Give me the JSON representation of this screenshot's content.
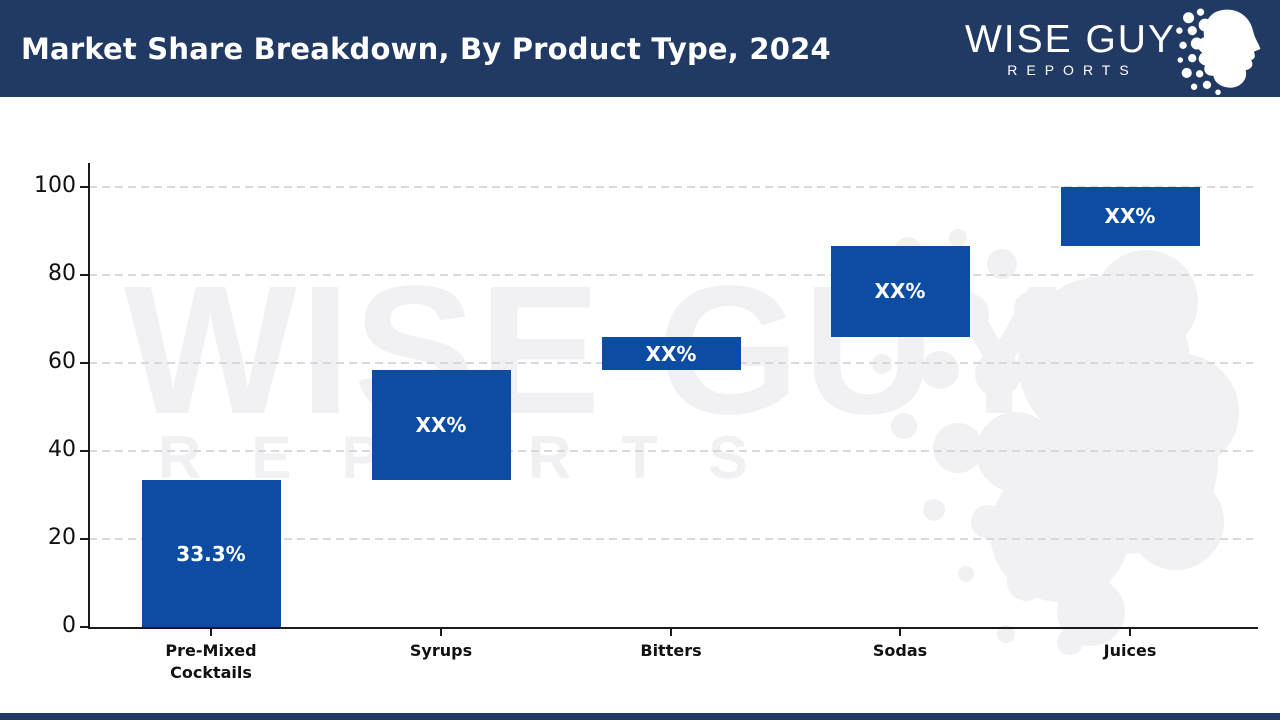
{
  "header": {
    "title": "Market Share Breakdown, By Product Type, 2024"
  },
  "logo": {
    "name_line": "WISE GUY",
    "sub_line": "REPORTS"
  },
  "watermark": {
    "name_line": "WISE GUY",
    "sub_line": "REPORTS"
  },
  "colors": {
    "header_bg": "#213a64",
    "bar_fill": "#0d4ca3",
    "bar_label_text": "#ffffff",
    "gridline": "#d9d9d9",
    "axis": "#1a1a1a",
    "watermark": "#f1f1f3"
  },
  "chart_data": {
    "type": "bar",
    "subtype": "waterfall",
    "title": "Market Share Breakdown, By Product Type, 2024",
    "categories": [
      "Pre-Mixed Cocktails",
      "Syrups",
      "Bitters",
      "Sodas",
      "Juices"
    ],
    "category_lines": [
      [
        "Pre-Mixed",
        "Cocktails"
      ],
      [
        "Syrups"
      ],
      [
        "Bitters"
      ],
      [
        "Sodas"
      ],
      [
        "Juices"
      ]
    ],
    "bars": [
      {
        "category": "Pre-Mixed Cocktails",
        "start": 0,
        "end": 33.3,
        "label": "33.3%"
      },
      {
        "category": "Syrups",
        "start": 33.3,
        "end": 58.3,
        "label": "XX%"
      },
      {
        "category": "Bitters",
        "start": 58.3,
        "end": 66,
        "label": "XX%"
      },
      {
        "category": "Sodas",
        "start": 66,
        "end": 86.6,
        "label": "XX%"
      },
      {
        "category": "Juices",
        "start": 86.6,
        "end": 100,
        "label": "XX%"
      }
    ],
    "yticks": [
      0,
      20,
      40,
      60,
      80,
      100
    ],
    "ylim": [
      0,
      105
    ],
    "xlabel": "",
    "ylabel": "",
    "grid": "horizontal-dashed",
    "legend": "none"
  }
}
